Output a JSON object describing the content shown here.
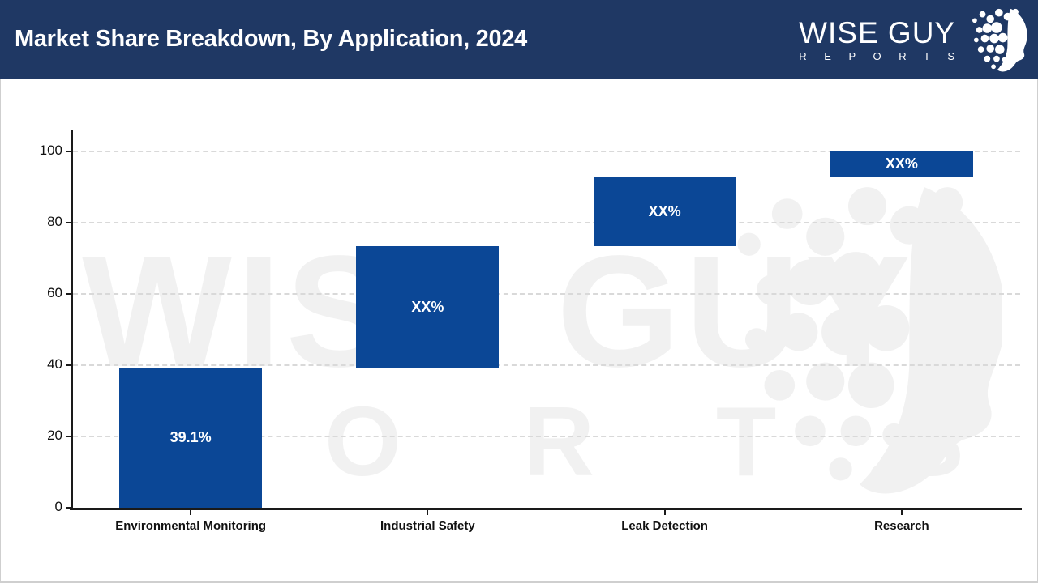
{
  "header": {
    "title": "Market Share Breakdown, By Application, 2024",
    "bg_color": "#1f3864",
    "logo": {
      "line1": "WISE GUY",
      "line2": "R E P O R T S"
    }
  },
  "watermark": {
    "line1": "WISE GUY",
    "line2": "P O R T S"
  },
  "chart_data": {
    "type": "bar",
    "subtype": "waterfall",
    "title": "Market Share Breakdown, By Application, 2024",
    "xlabel": "",
    "ylabel": "",
    "ylim": [
      0,
      100
    ],
    "yticks": [
      0,
      20,
      40,
      60,
      80,
      100
    ],
    "grid": true,
    "legend": "none",
    "bar_color": "#0b4796",
    "value_label_color": "#ffffff",
    "categories": [
      "Environmental Monitoring",
      "Industrial Safety",
      "Leak Detection",
      "Research"
    ],
    "segments": [
      {
        "category": "Environmental Monitoring",
        "start": 0,
        "end": 39.1,
        "label": "39.1%"
      },
      {
        "category": "Industrial Safety",
        "start": 39.1,
        "end": 73.4,
        "label": "XX%"
      },
      {
        "category": "Leak Detection",
        "start": 73.4,
        "end": 92.9,
        "label": "XX%"
      },
      {
        "category": "Research",
        "start": 92.9,
        "end": 100,
        "label": "XX%"
      }
    ]
  }
}
